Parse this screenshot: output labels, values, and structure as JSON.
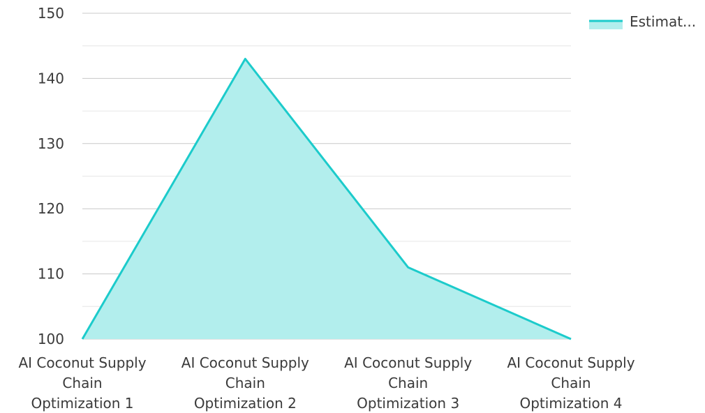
{
  "chart_data": {
    "type": "area",
    "categories": [
      [
        "AI Coconut Supply",
        "Chain",
        "Optimization 1"
      ],
      [
        "AI Coconut Supply",
        "Chain",
        "Optimization 2"
      ],
      [
        "AI Coconut Supply",
        "Chain",
        "Optimization 3"
      ],
      [
        "AI Coconut Supply",
        "Chain",
        "Optimization 4"
      ]
    ],
    "series": [
      {
        "name": "Estimat...",
        "values": [
          100,
          143,
          111,
          100
        ]
      }
    ],
    "ylim": [
      100,
      150
    ],
    "yticks": [
      "100",
      "110",
      "120",
      "130",
      "140",
      "150"
    ],
    "grid": true,
    "legend": "top-right",
    "colors": {
      "line": "#1ccbcb",
      "fill": "#b2eeed",
      "grid_major": "#c8c8c8",
      "grid_minor": "#e6e6e6"
    }
  }
}
